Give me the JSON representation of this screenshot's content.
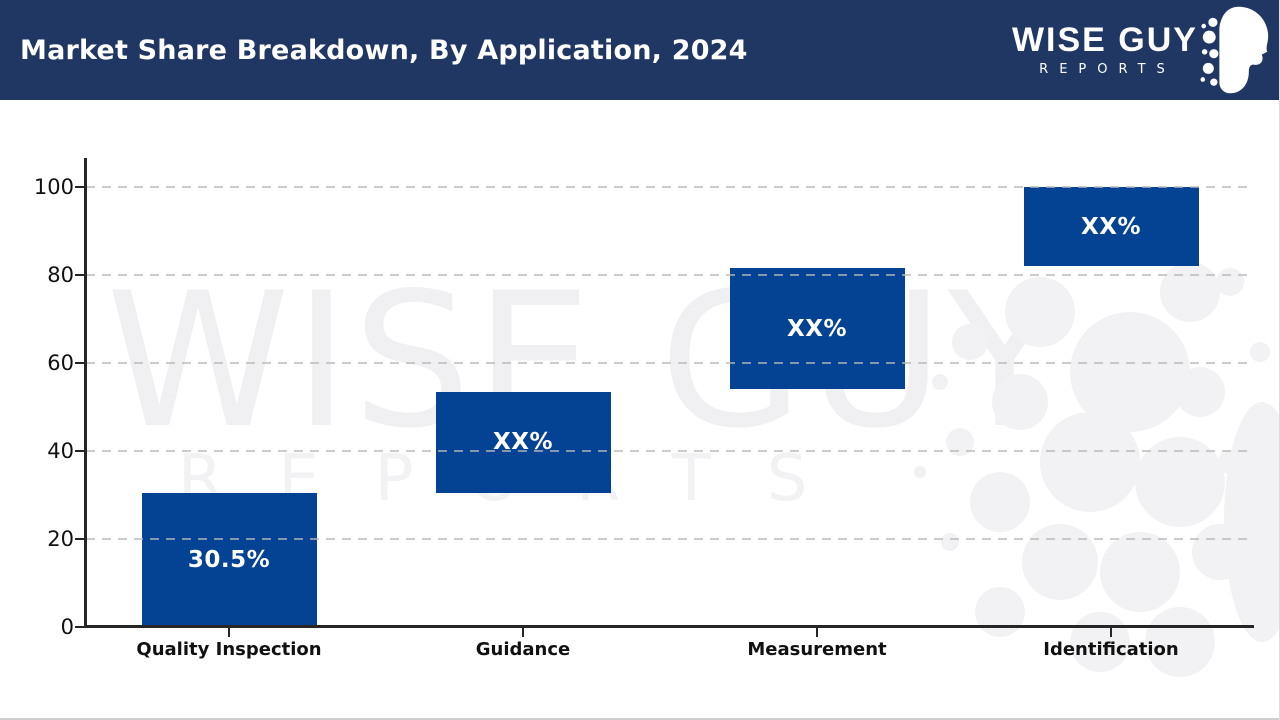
{
  "header": {
    "title": "Market Share Breakdown, By Application, 2024",
    "logo": {
      "primary": "WISE GUY",
      "secondary": "REPORTS"
    }
  },
  "watermark": {
    "primary": "WISE GUY",
    "secondary": "REPORTS"
  },
  "colors": {
    "header_bg": "#203663",
    "bar": "#044294",
    "bar_label": "#ffffff",
    "axis": "#262626",
    "gridline": "#d9d9d9",
    "watermark": "#f0f0f3"
  },
  "chart_data": {
    "type": "bar",
    "subtype": "floating-waterfall",
    "title": "Market Share Breakdown, By Application, 2024",
    "categories": [
      "Quality Inspection",
      "Guidance",
      "Measurement",
      "Identification"
    ],
    "series": [
      {
        "name": "Market share (%)",
        "segments": [
          {
            "category": "Quality Inspection",
            "start": 0,
            "end": 30.5,
            "label": "30.5%"
          },
          {
            "category": "Guidance",
            "start": 30.5,
            "end": 53.5,
            "label": "XX%"
          },
          {
            "category": "Measurement",
            "start": 54,
            "end": 81.5,
            "label": "XX%"
          },
          {
            "category": "Identification",
            "start": 82,
            "end": 100,
            "label": "XX%"
          }
        ]
      }
    ],
    "xlabel": "",
    "ylabel": "",
    "ylim": [
      0,
      100
    ],
    "yticks": [
      0,
      20,
      40,
      60,
      80,
      100
    ],
    "grid": {
      "horizontal": true,
      "style": "dashed"
    },
    "legend": "none",
    "bar_color": "#044294",
    "bar_label_color": "#ffffff"
  }
}
